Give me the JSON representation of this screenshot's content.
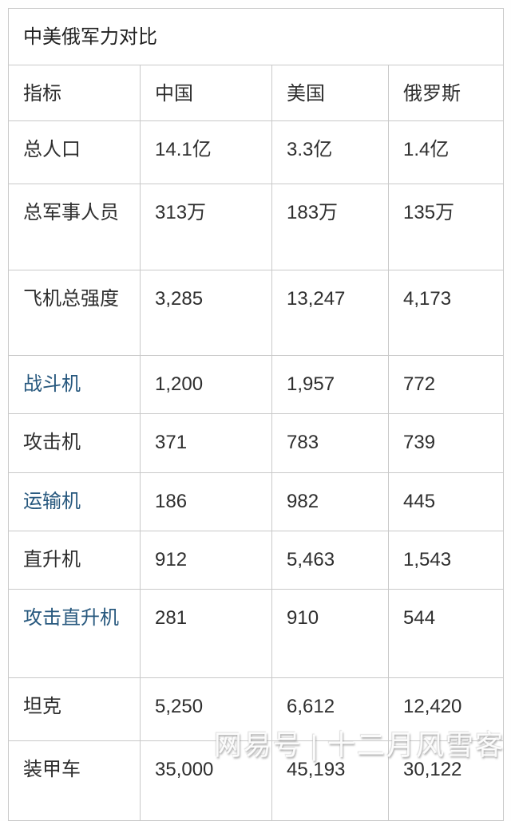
{
  "table": {
    "title": "中美俄军力对比",
    "columns": [
      "指标",
      "中国",
      "美国",
      "俄罗斯"
    ],
    "rows": [
      {
        "label": "总人口",
        "is_link": false,
        "values": [
          "14.1亿",
          "3.3亿",
          "1.4亿"
        ]
      },
      {
        "label": "总军事人员",
        "is_link": false,
        "values": [
          "313万",
          "183万",
          "135万"
        ]
      },
      {
        "label": "飞机总强度",
        "is_link": false,
        "values": [
          "3,285",
          "13,247",
          "4,173"
        ]
      },
      {
        "label": "战斗机",
        "is_link": true,
        "values": [
          "1,200",
          "1,957",
          "772"
        ]
      },
      {
        "label": "攻击机",
        "is_link": false,
        "values": [
          "371",
          "783",
          "739"
        ]
      },
      {
        "label": "运输机",
        "is_link": true,
        "values": [
          "186",
          "982",
          "445"
        ]
      },
      {
        "label": "直升机",
        "is_link": false,
        "values": [
          "912",
          "5,463",
          "1,543"
        ]
      },
      {
        "label": "攻击直升机",
        "is_link": true,
        "values": [
          "281",
          "910",
          "544"
        ]
      },
      {
        "label": "坦克",
        "is_link": false,
        "values": [
          "5,250",
          "6,612",
          "12,420"
        ]
      },
      {
        "label": "装甲车",
        "is_link": false,
        "values": [
          "35,000",
          "45,193",
          "30,122"
        ]
      }
    ]
  },
  "watermark": {
    "source": "网易号",
    "separator": "|",
    "author": "十二月风雪客"
  },
  "colors": {
    "link_blue": "#27587e",
    "border_gray": "#c9c9c9",
    "text": "#2e2e2e"
  }
}
